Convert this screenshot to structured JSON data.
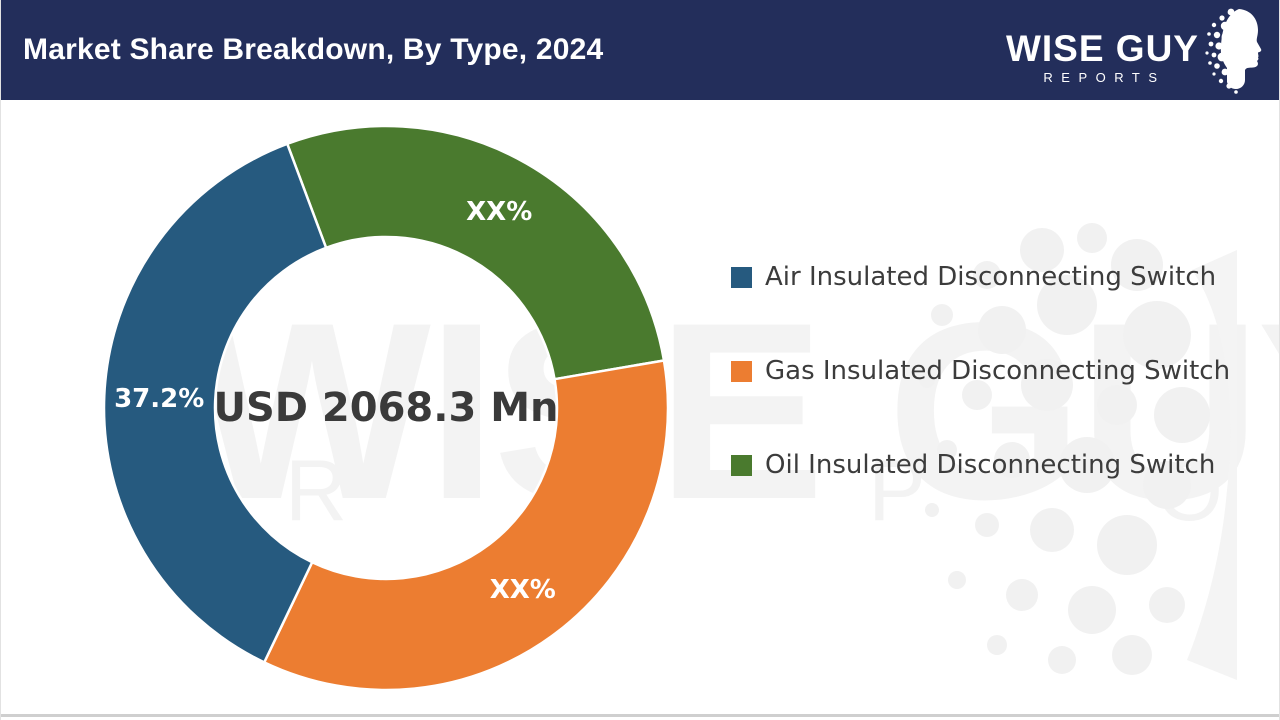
{
  "colors": {
    "header_bg": "#232e5b",
    "blue": "#265a7f",
    "orange": "#ec7d31",
    "green": "#4a7a2e",
    "text_dark": "#3a3a3a",
    "watermark": "#f3f3f3"
  },
  "header": {
    "title": "Market Share Breakdown, By Type, 2024",
    "logo_line1": "WISE GUY",
    "logo_line2": "REPORTS"
  },
  "chart_data": {
    "type": "pie",
    "subtype": "donut",
    "title": "Market Share Breakdown, By Type, 2024",
    "center_label": "USD 2068.3 Mn",
    "start_angle_deg": -20.5,
    "direction": "clockwise",
    "legend_position": "right",
    "segments": [
      {
        "name": "Oil Insulated Disconnecting Switch",
        "label": "XX%",
        "value_pct": 28.0,
        "color": "#4a7a2e"
      },
      {
        "name": "Gas Insulated Disconnecting Switch",
        "label": "XX%",
        "value_pct": 34.8,
        "color": "#ec7d31"
      },
      {
        "name": "Air Insulated Disconnecting Switch",
        "label": "37.2%",
        "value_pct": 37.2,
        "color": "#265a7f"
      }
    ]
  },
  "legend": {
    "items": [
      {
        "label": "Air Insulated Disconnecting Switch",
        "color": "#265a7f"
      },
      {
        "label": "Gas Insulated Disconnecting Switch",
        "color": "#ec7d31"
      },
      {
        "label": "Oil Insulated Disconnecting Switch",
        "color": "#4a7a2e"
      }
    ]
  },
  "watermark": {
    "line1": "WISE GUY",
    "line2": "R E P O R T S"
  }
}
